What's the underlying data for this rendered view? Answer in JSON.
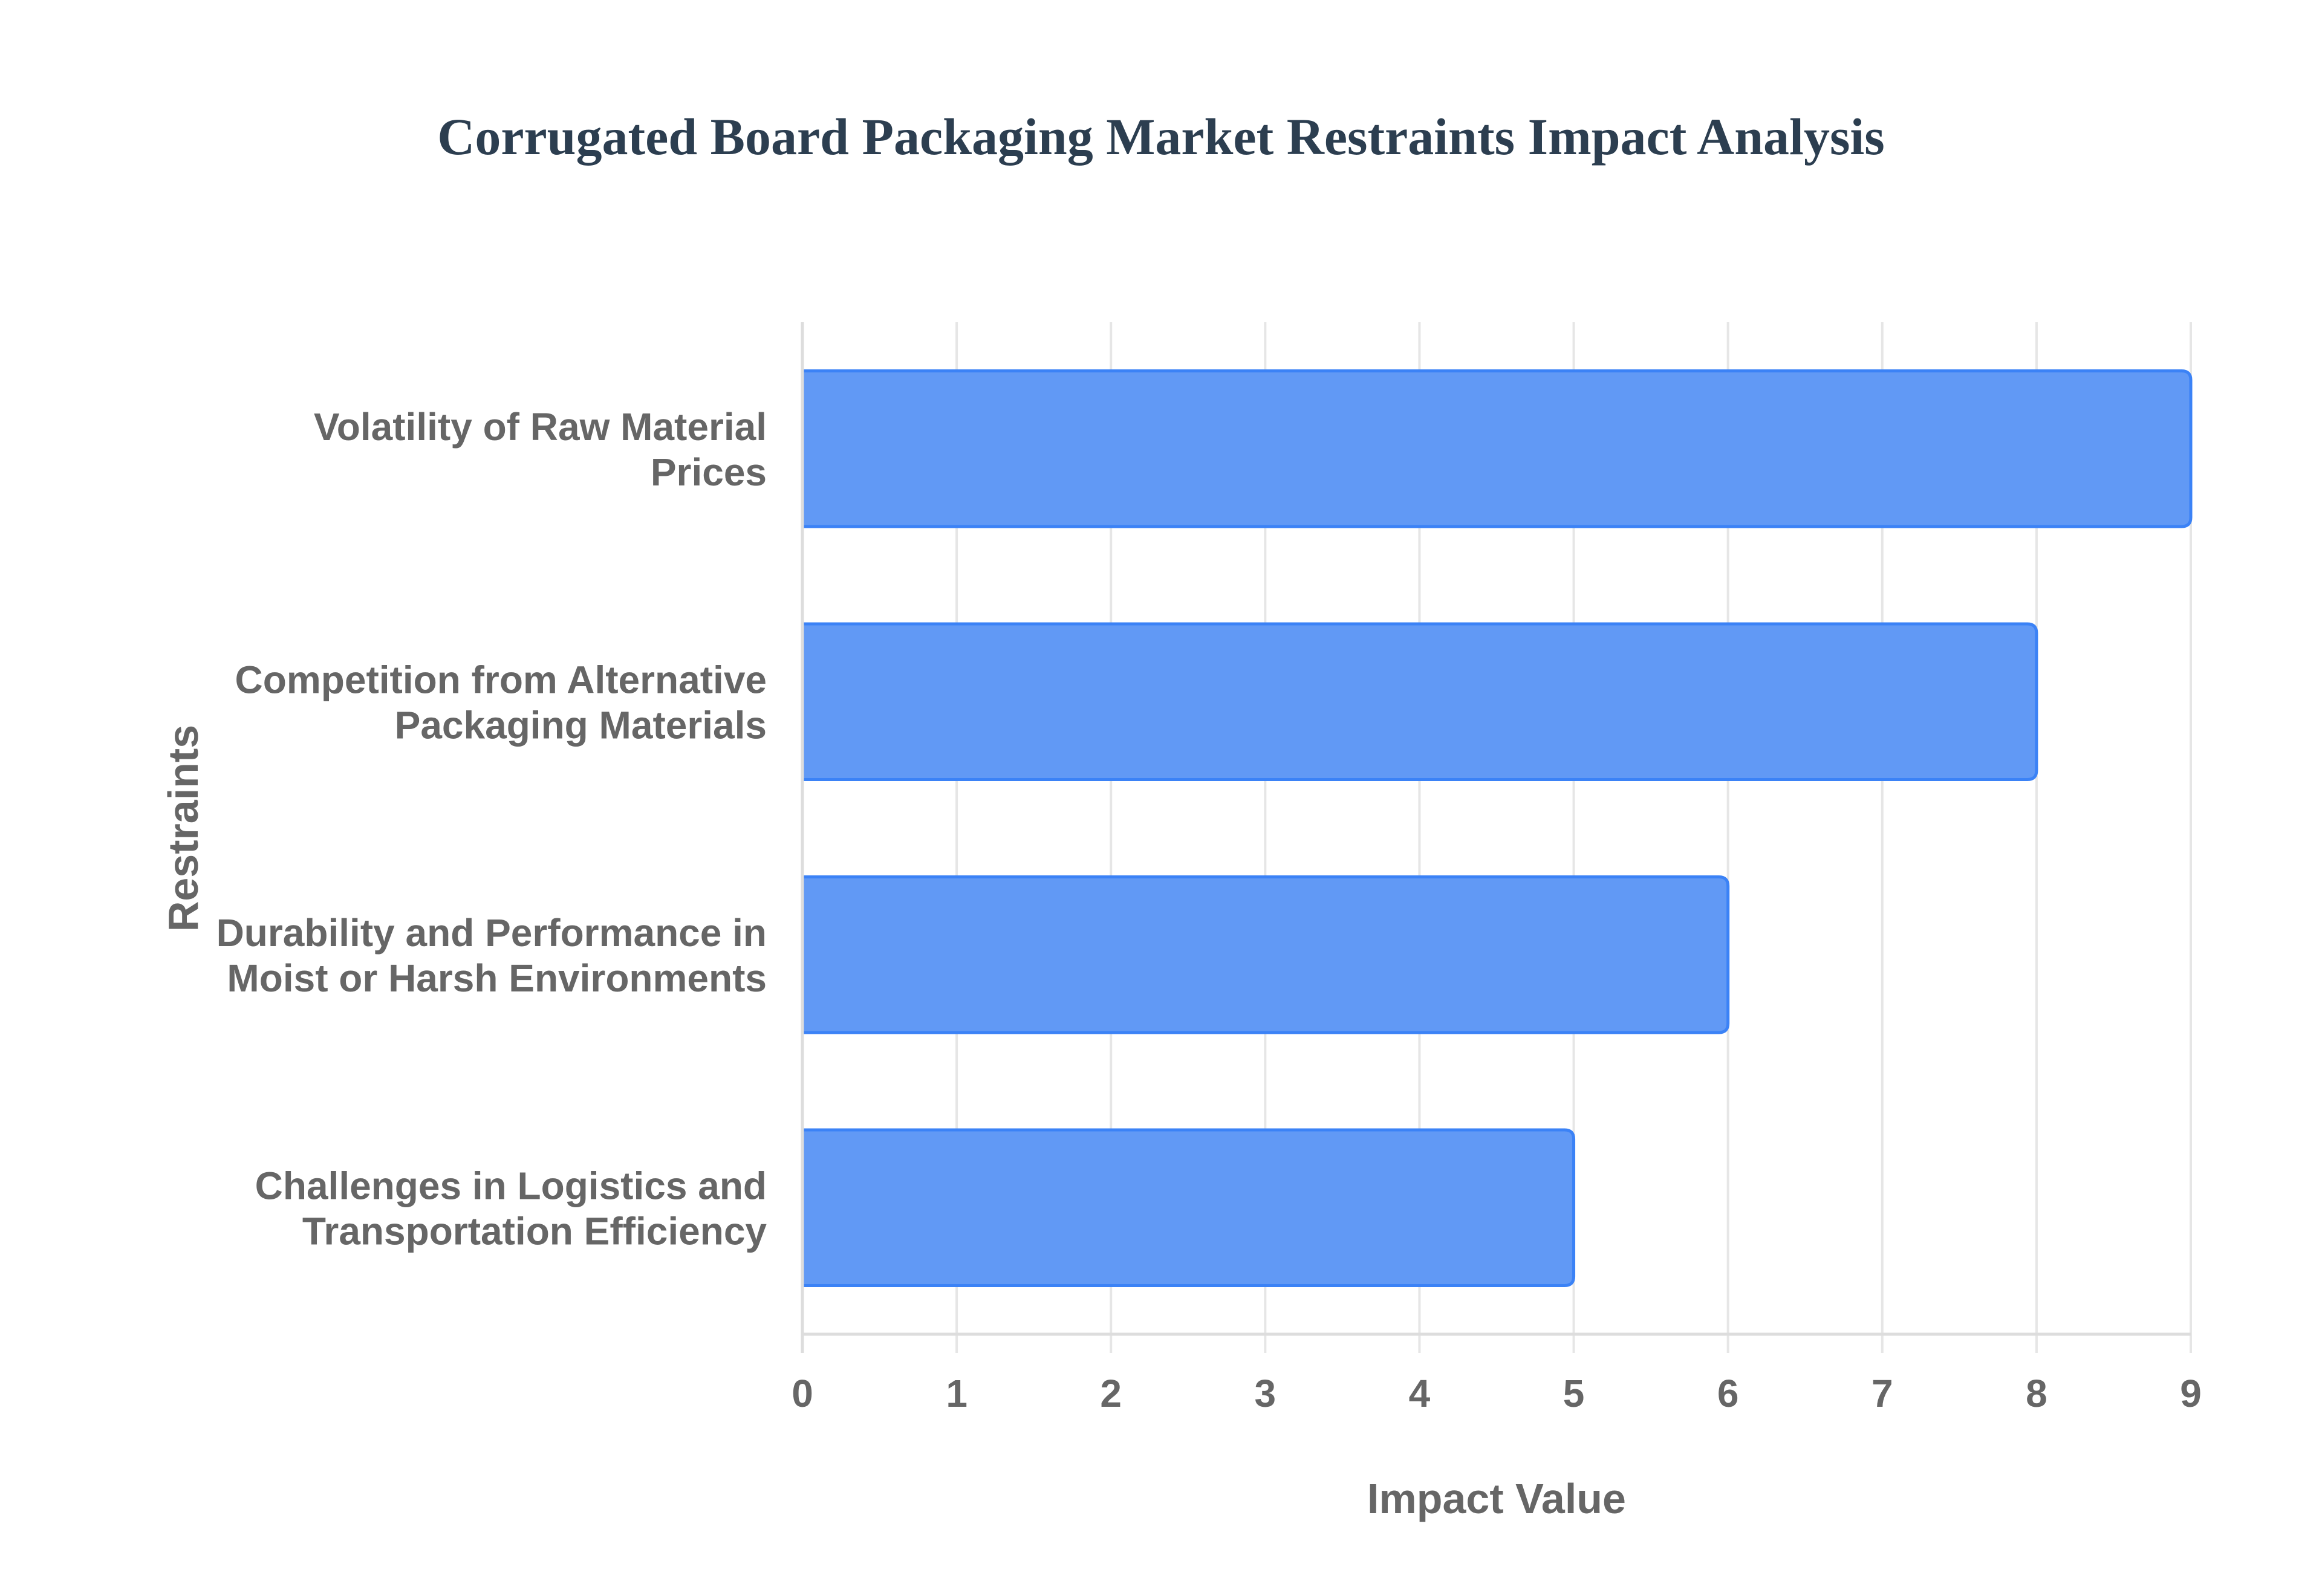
{
  "title": "Corrugated Board Packaging Market Restraints Impact Analysis",
  "x_axis": {
    "title": "Impact Value",
    "ticks": [
      "0",
      "1",
      "2",
      "3",
      "4",
      "5",
      "6",
      "7",
      "8",
      "9"
    ]
  },
  "y_axis": {
    "title": "Restraints"
  },
  "colors": {
    "bar_fill": "#6199f5",
    "bar_border": "#3b82f6",
    "title": "#2c3e50",
    "label": "#666666",
    "grid": "#e6e6e6"
  },
  "chart_data": {
    "type": "bar",
    "orientation": "horizontal",
    "title": "Corrugated Board Packaging Market Restraints Impact Analysis",
    "xlabel": "Impact Value",
    "ylabel": "Restraints",
    "xlim": [
      0,
      9
    ],
    "grid": true,
    "legend": null,
    "categories": [
      "Volatility of Raw Material Prices",
      "Competition from Alternative Packaging Materials",
      "Durability and Performance in Moist or Harsh Environments",
      "Challenges in Logistics and Transportation Efficiency"
    ],
    "category_label_lines": [
      [
        "Volatility of Raw Material",
        "Prices"
      ],
      [
        "Competition from Alternative",
        "Packaging Materials"
      ],
      [
        "Durability and Performance in",
        "Moist or Harsh Environments"
      ],
      [
        "Challenges in Logistics and",
        "Transportation Efficiency"
      ]
    ],
    "values": [
      9,
      8,
      6,
      5
    ]
  }
}
